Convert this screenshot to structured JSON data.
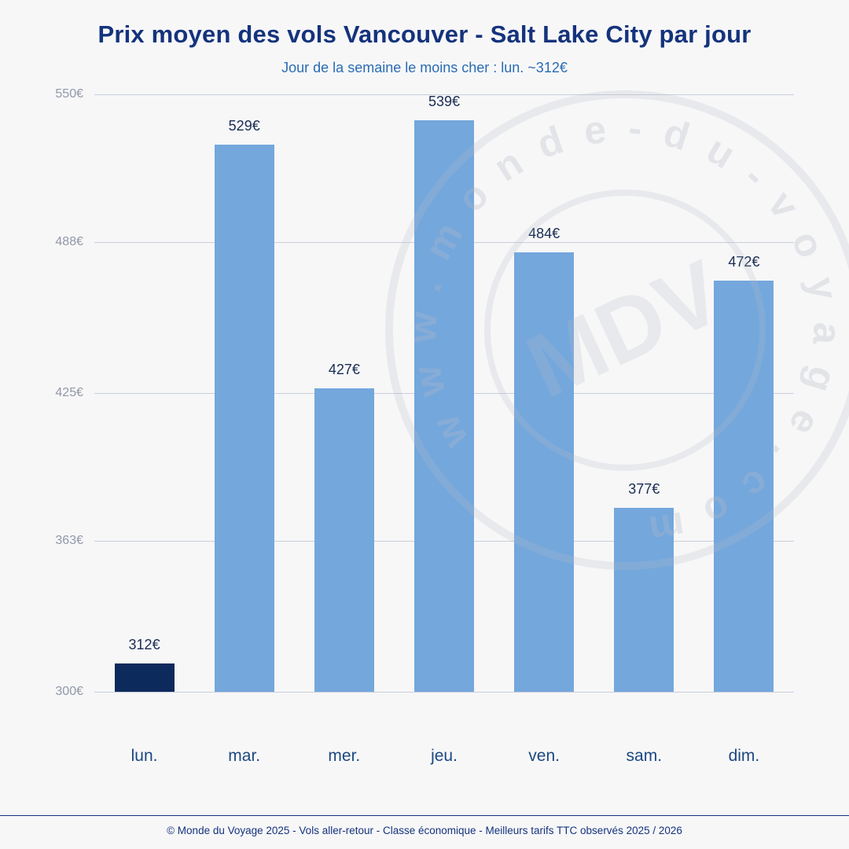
{
  "header": {
    "title": "Prix moyen des vols Vancouver - Salt Lake City par jour",
    "subtitle": "Jour de la semaine le moins cher : lun. ~312€"
  },
  "chart_data": {
    "type": "bar",
    "title": "Prix moyen des vols Vancouver - Salt Lake City par jour",
    "subtitle": "Jour de la semaine le moins cher : lun. ~312€",
    "categories": [
      "lun.",
      "mar.",
      "mer.",
      "jeu.",
      "ven.",
      "sam.",
      "dim."
    ],
    "values": [
      312,
      529,
      427,
      539,
      484,
      377,
      472
    ],
    "labels": [
      "312€",
      "529€",
      "427€",
      "539€",
      "484€",
      "377€",
      "472€"
    ],
    "ylim": [
      300,
      550
    ],
    "yticks": [
      550,
      488,
      425,
      363,
      300
    ],
    "ytick_labels": [
      "550€",
      "488€",
      "425€",
      "363€",
      "300€"
    ],
    "highlight_index": 0,
    "bar_color": "#74a7dc",
    "highlight_color": "#0d2a5c",
    "grid": true,
    "legend": "none"
  },
  "watermark": {
    "ring_text": "www.monde-du-voyage.com",
    "center_text": "MDV"
  },
  "footer": {
    "text": "© Monde du Voyage 2025 - Vols aller-retour - Classe économique - Meilleurs tarifs TTC observés 2025 / 2026"
  }
}
